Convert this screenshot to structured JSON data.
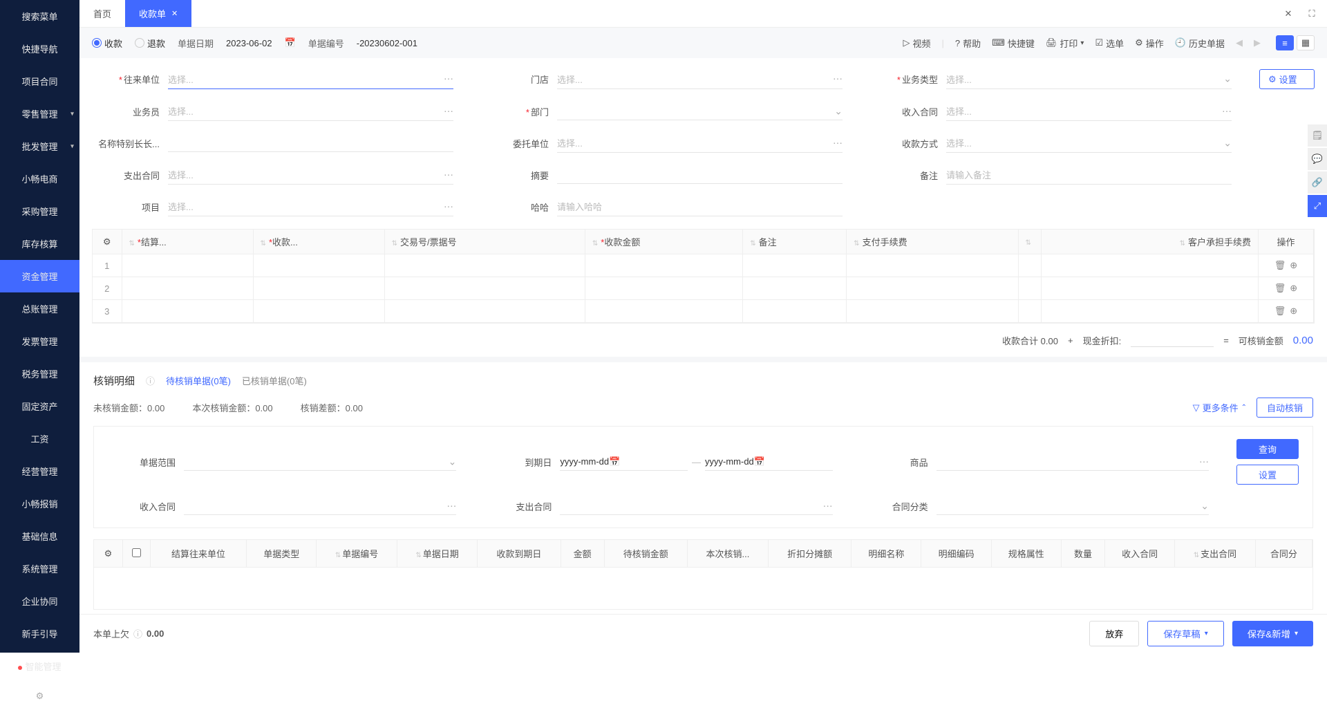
{
  "sidebar": {
    "items": [
      {
        "label": "搜索菜单",
        "chev": false
      },
      {
        "label": "快捷导航",
        "chev": false
      },
      {
        "label": "项目合同",
        "chev": false
      },
      {
        "label": "零售管理",
        "chev": true
      },
      {
        "label": "批发管理",
        "chev": true
      },
      {
        "label": "小畅电商",
        "chev": false
      },
      {
        "label": "采购管理",
        "chev": false
      },
      {
        "label": "库存核算",
        "chev": false
      },
      {
        "label": "资金管理",
        "chev": false,
        "active": true
      },
      {
        "label": "总账管理",
        "chev": false
      },
      {
        "label": "发票管理",
        "chev": false
      },
      {
        "label": "税务管理",
        "chev": false
      },
      {
        "label": "固定资产",
        "chev": false
      },
      {
        "label": "工资",
        "chev": false
      },
      {
        "label": "经营管理",
        "chev": false
      },
      {
        "label": "小畅报销",
        "chev": false
      },
      {
        "label": "基础信息",
        "chev": false
      },
      {
        "label": "系统管理",
        "chev": false
      },
      {
        "label": "企业协同",
        "chev": false
      },
      {
        "label": "新手引导",
        "chev": false
      },
      {
        "label": "智能管理",
        "chev": false,
        "dot": true
      }
    ]
  },
  "tabs": [
    {
      "label": "首页",
      "closable": false
    },
    {
      "label": "收款单",
      "closable": true,
      "active": true
    }
  ],
  "toolbar": {
    "radio_receipt": "收款",
    "radio_refund": "退款",
    "date_label": "单据日期",
    "date_value": "2023-06-02",
    "doc_no_label": "单据编号",
    "doc_no_value": "-20230602-001",
    "video": "视频",
    "help": "帮助",
    "shortcut": "快捷键",
    "print": "打印",
    "select_doc": "选单",
    "operate": "操作",
    "history": "历史单据"
  },
  "form": {
    "placeholder_select": "选择...",
    "placeholder_remark": "请输入备注",
    "placeholder_haha": "请输入哈哈",
    "settings_btn": "设置",
    "labels": {
      "customer": "往来单位",
      "store": "门店",
      "biz_type": "业务类型",
      "salesman": "业务员",
      "dept": "部门",
      "income_contract": "收入合同",
      "long_name": "名称特别长长...",
      "entrust": "委托单位",
      "receipt_method": "收款方式",
      "expense_contract": "支出合同",
      "summary": "摘要",
      "remark": "备注",
      "project": "项目",
      "haha": "哈哈"
    }
  },
  "grid": {
    "cols": [
      "结算...",
      "收款...",
      "交易号/票据号",
      "收款金额",
      "备注",
      "支付手续费",
      "",
      "客户承担手续费"
    ],
    "ops_label": "操作",
    "rows": [
      1,
      2,
      3
    ]
  },
  "totals": {
    "receipt_total_label": "收款合计",
    "receipt_total_value": "0.00",
    "plus": "+",
    "cash_discount_label": "现金折扣:",
    "equals": "=",
    "writeoff_label": "可核销金额",
    "writeoff_value": "0.00"
  },
  "writeoff": {
    "title": "核销明细",
    "tab_pending": "待核销单据(0笔)",
    "tab_done": "已核销单据(0笔)",
    "stat_unw": "未核销金额：0.00",
    "stat_cur": "本次核销金额：0.00",
    "stat_diff": "核销差额：0.00",
    "more_cond": "更多条件",
    "auto_btn": "自动核销",
    "filter": {
      "doc_range": "单据范围",
      "due_date": "到期日",
      "date_ph": "yyyy-mm-dd",
      "product": "商品",
      "income_contract": "收入合同",
      "expense_contract": "支出合同",
      "contract_cat": "合同分类",
      "query": "查询",
      "settings": "设置"
    },
    "detail_cols": [
      "结算往来单位",
      "单据类型",
      "单据编号",
      "单据日期",
      "收款到期日",
      "金额",
      "待核销金额",
      "本次核销...",
      "折扣分摊额",
      "明细名称",
      "明细编码",
      "规格属性",
      "数量",
      "收入合同",
      "支出合同",
      "合同分"
    ]
  },
  "footer": {
    "prev_owed_label": "本单上欠",
    "prev_owed_value": "0.00",
    "discard": "放弃",
    "save_draft": "保存草稿",
    "save_new": "保存&新增"
  }
}
